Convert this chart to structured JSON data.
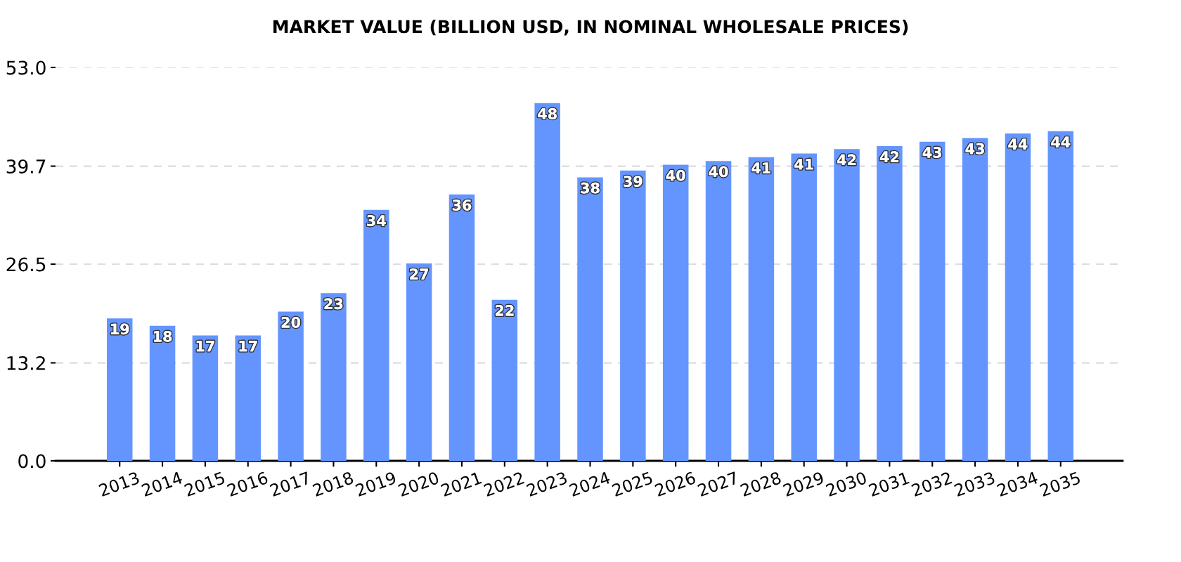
{
  "chart_data": {
    "type": "bar",
    "title": "MARKET VALUE (BILLION USD, IN NOMINAL WHOLESALE PRICES)",
    "categories": [
      "2013",
      "2014",
      "2015",
      "2016",
      "2017",
      "2018",
      "2019",
      "2020",
      "2021",
      "2022",
      "2023",
      "2024",
      "2025",
      "2026",
      "2027",
      "2028",
      "2029",
      "2030",
      "2031",
      "2032",
      "2033",
      "2034",
      "2035"
    ],
    "values": [
      19.2,
      18.2,
      16.9,
      16.9,
      20.1,
      22.6,
      33.8,
      26.6,
      35.9,
      21.7,
      48.2,
      38.2,
      39.1,
      39.9,
      40.4,
      40.9,
      41.4,
      42.0,
      42.4,
      43.0,
      43.5,
      44.1,
      44.4
    ],
    "value_labels": [
      "19",
      "18",
      "17",
      "17",
      "20",
      "23",
      "34",
      "27",
      "36",
      "22",
      "48",
      "38",
      "39",
      "40",
      "40",
      "41",
      "41",
      "42",
      "42",
      "43",
      "43",
      "44",
      "44"
    ],
    "color": "#6495ff",
    "ylim": [
      0,
      53
    ],
    "yticks": [
      {
        "value": 0,
        "label": "0.0"
      },
      13.2,
      26.5,
      39.7,
      {
        "value": 53,
        "label": "53.0"
      }
    ],
    "grid": "y"
  }
}
